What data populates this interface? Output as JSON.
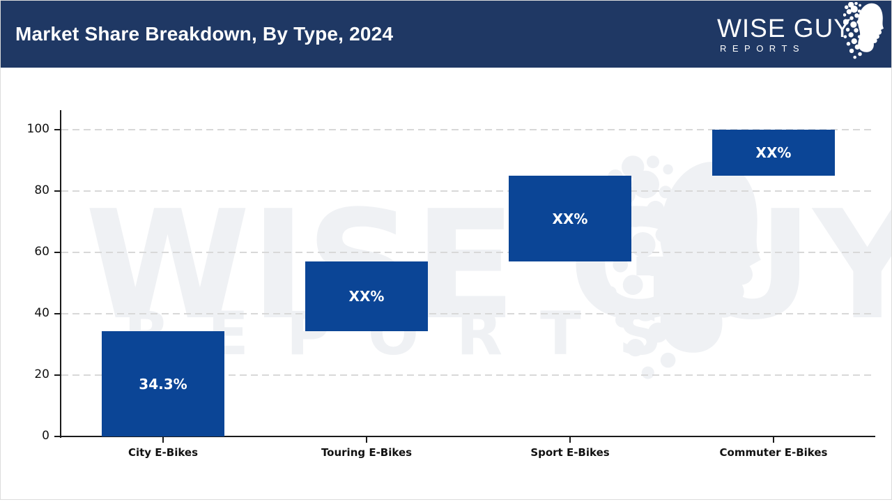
{
  "header": {
    "title": "Market Share Breakdown, By Type, 2024",
    "bg_color": "#1F3864",
    "brand": {
      "name": "WISE GUY",
      "tagline": "REPORTS"
    }
  },
  "watermark": {
    "line1": "WISE GUY",
    "line2": "R E P O R T S"
  },
  "chart_data": {
    "type": "bar",
    "subtype": "waterfall",
    "title": "Market Share Breakdown, By Type, 2024",
    "categories": [
      "City E-Bikes",
      "Touring E-Bikes",
      "Sport E-Bikes",
      "Commuter E-Bikes"
    ],
    "bars": [
      {
        "category": "City E-Bikes",
        "start": 0,
        "end": 34.3,
        "label": "34.3%"
      },
      {
        "category": "Touring E-Bikes",
        "start": 34.3,
        "end": 57,
        "label": "XX%"
      },
      {
        "category": "Sport E-Bikes",
        "start": 57,
        "end": 85,
        "label": "XX%"
      },
      {
        "category": "Commuter E-Bikes",
        "start": 85,
        "end": 100,
        "label": "XX%"
      }
    ],
    "xlabel": "",
    "ylabel": "",
    "yticks": [
      0,
      20,
      40,
      60,
      80,
      100
    ],
    "ylim": [
      0,
      105
    ],
    "grid": "horizontal-dashed",
    "legend": "none",
    "bar_color": "#0B4596",
    "bar_label_color": "#FFFFFF",
    "axis_color": "#1A1A1A",
    "grid_color": "#D8D8D8",
    "tick_label_color": "#111111"
  }
}
